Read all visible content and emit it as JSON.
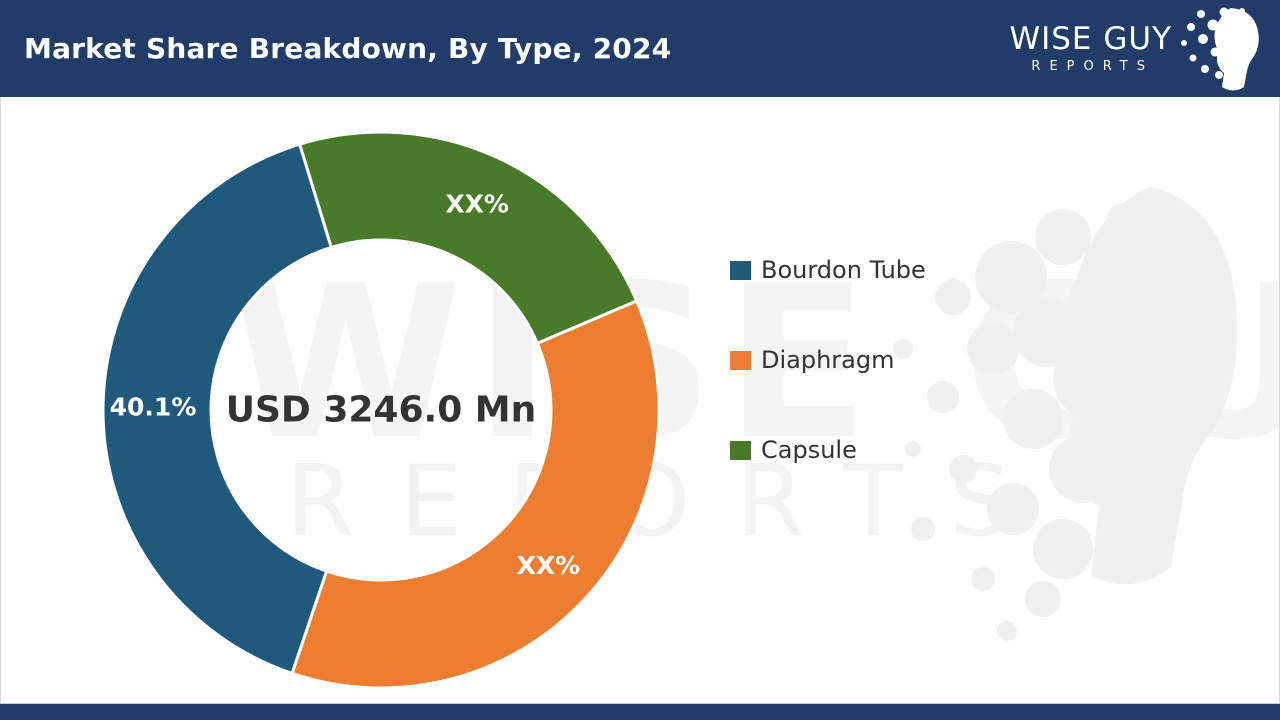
{
  "header": {
    "title": "Market Share Breakdown, By Type, 2024",
    "logo": {
      "line1": "WISE GUY",
      "line2": "REPORTS"
    }
  },
  "watermark": {
    "line1": "WISE GUY",
    "line2": "REPORTS"
  },
  "chart_data": {
    "type": "pie",
    "variant": "donut",
    "title": "Market Share Breakdown, By Type, 2024",
    "center_label": "USD 3246.0 Mn",
    "startangle": 107,
    "counterclockwise": true,
    "legend_position": "right",
    "slices": [
      {
        "label": "Bourdon Tube",
        "display_value": "40.1%",
        "percent": 40.1,
        "color": "#1f5a7d"
      },
      {
        "label": "Diaphragm",
        "display_value": "XX%",
        "percent": 36.6,
        "color": "#ed7d31"
      },
      {
        "label": "Capsule",
        "display_value": "XX%",
        "percent": 23.3,
        "color": "#487a29"
      }
    ]
  },
  "colors": {
    "header_bar": "#213c68",
    "footer_bar": "#213c68",
    "center_text": "#333333",
    "legend_text": "#333333",
    "watermark": "#f4f4f4"
  }
}
